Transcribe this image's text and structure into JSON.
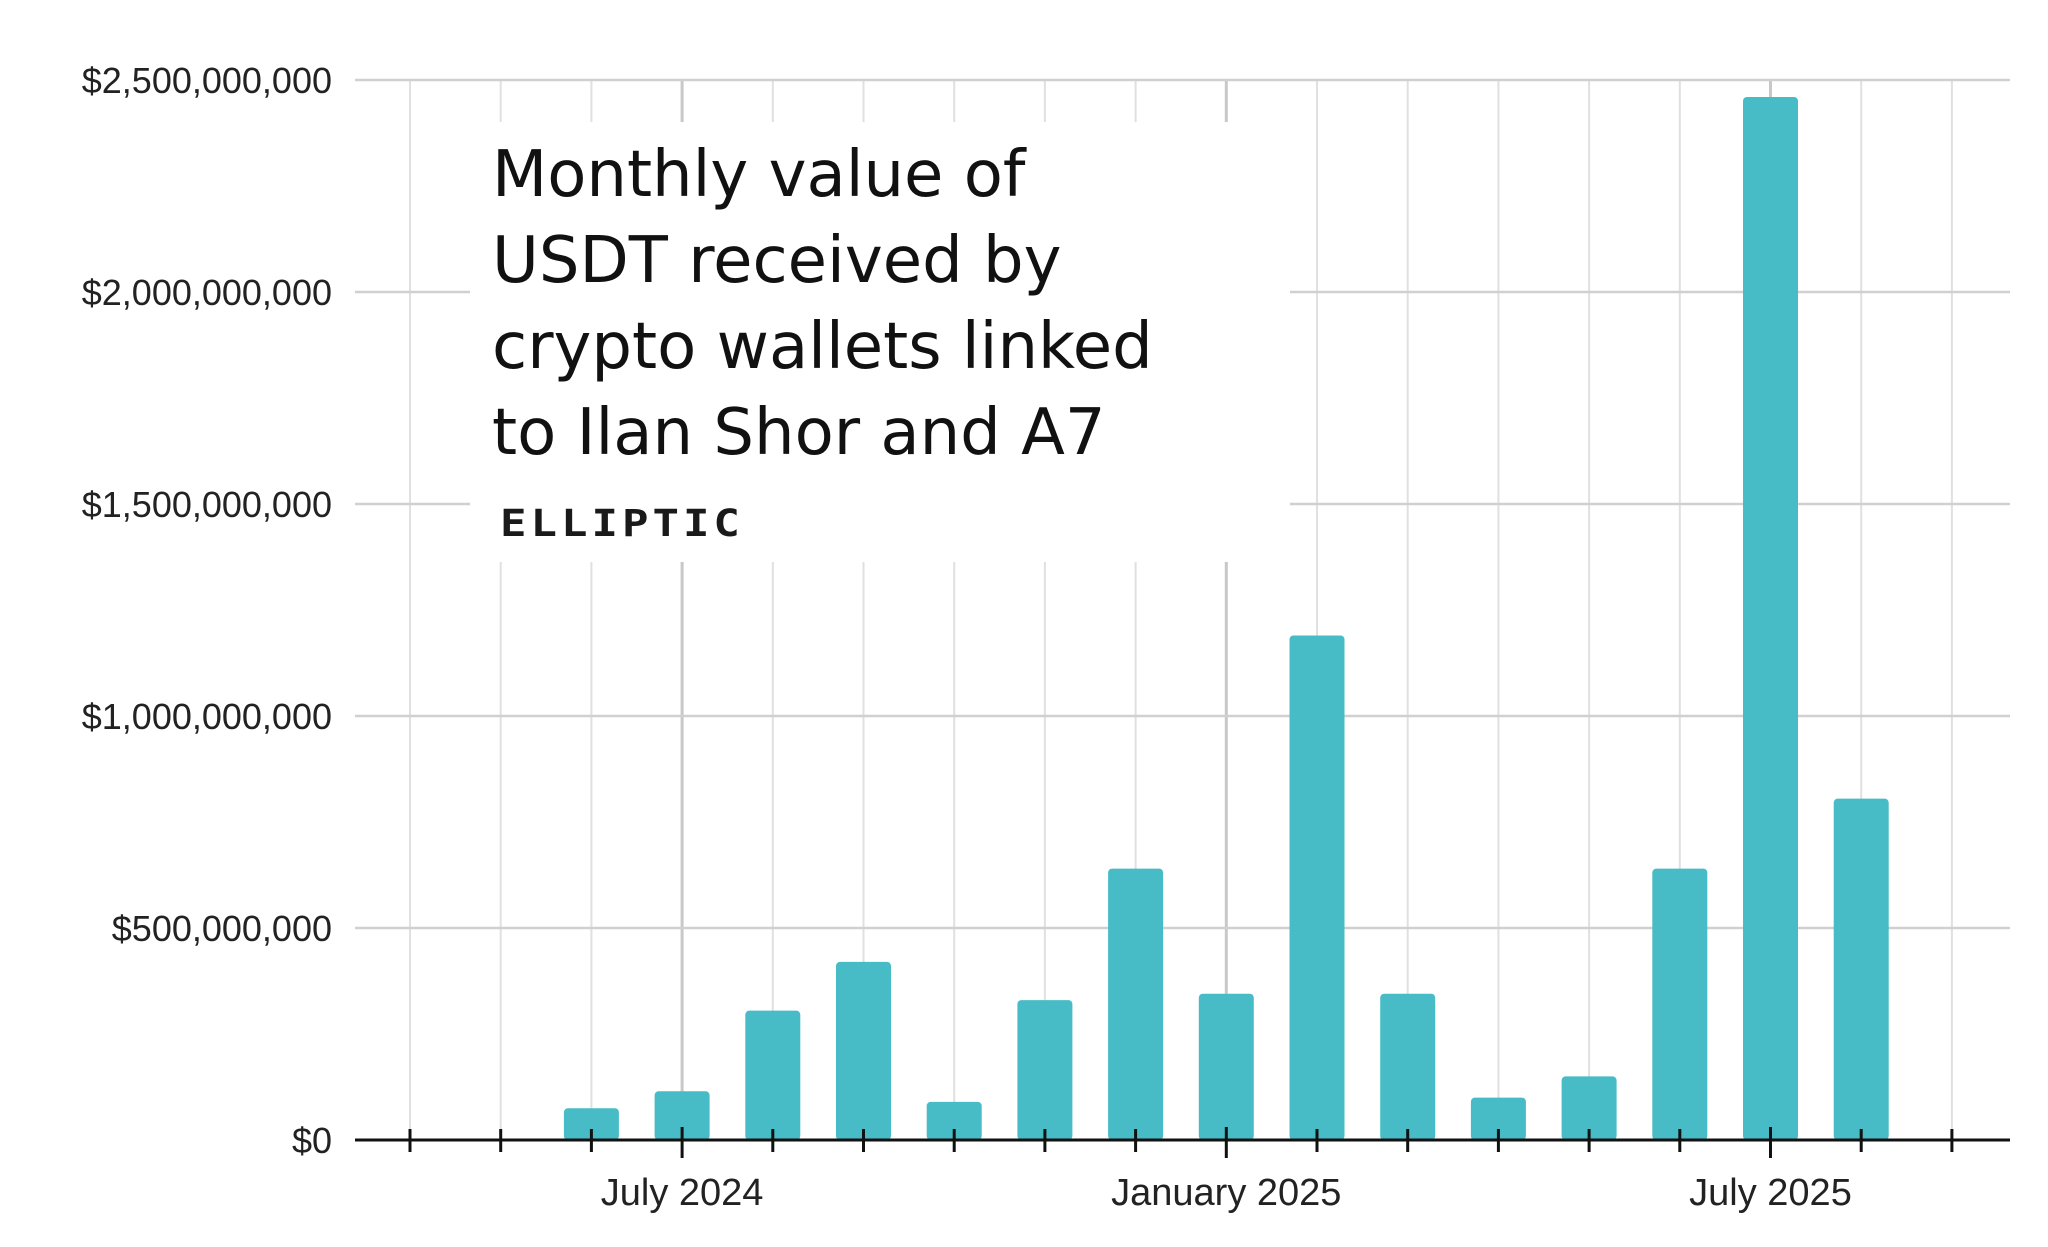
{
  "chart_data": {
    "type": "bar",
    "title": "Monthly value of\nUSDT received by\ncrypto wallets linked\nto Ilan Shor and A7",
    "source_logo": "ELLIPTIC",
    "xlabel": "",
    "ylabel": "",
    "ylim": [
      0,
      2500000000
    ],
    "y_ticks": [
      0,
      500000000,
      1000000000,
      1500000000,
      2000000000,
      2500000000
    ],
    "y_tick_labels": [
      "$0",
      "$500,000,000",
      "$1,000,000,000",
      "$1,500,000,000",
      "$2,000,000,000",
      "$2,500,000,000"
    ],
    "x_tick_labels": [
      {
        "label": "July 2024",
        "month": "2024-07"
      },
      {
        "label": "January 2025",
        "month": "2025-01"
      },
      {
        "label": "July 2025",
        "month": "2025-07"
      }
    ],
    "months": [
      "2024-04",
      "2024-05",
      "2024-06",
      "2024-07",
      "2024-08",
      "2024-09",
      "2024-10",
      "2024-11",
      "2024-12",
      "2025-01",
      "2025-02",
      "2025-03",
      "2025-04",
      "2025-05",
      "2025-06",
      "2025-07",
      "2025-08",
      "2025-09"
    ],
    "bars": [
      {
        "month": "2024-06",
        "value": 75000000
      },
      {
        "month": "2024-07",
        "value": 115000000
      },
      {
        "month": "2024-08",
        "value": 305000000
      },
      {
        "month": "2024-09",
        "value": 420000000
      },
      {
        "month": "2024-10",
        "value": 90000000
      },
      {
        "month": "2024-11",
        "value": 330000000
      },
      {
        "month": "2024-12",
        "value": 640000000
      },
      {
        "month": "2025-01",
        "value": 345000000
      },
      {
        "month": "2025-02",
        "value": 1190000000
      },
      {
        "month": "2025-03",
        "value": 345000000
      },
      {
        "month": "2025-04",
        "value": 100000000
      },
      {
        "month": "2025-05",
        "value": 150000000
      },
      {
        "month": "2025-06",
        "value": 640000000
      },
      {
        "month": "2025-07",
        "value": 2460000000
      },
      {
        "month": "2025-08",
        "value": 805000000
      }
    ],
    "bar_color": "#47bcc6",
    "grid": true,
    "legend": "none"
  }
}
